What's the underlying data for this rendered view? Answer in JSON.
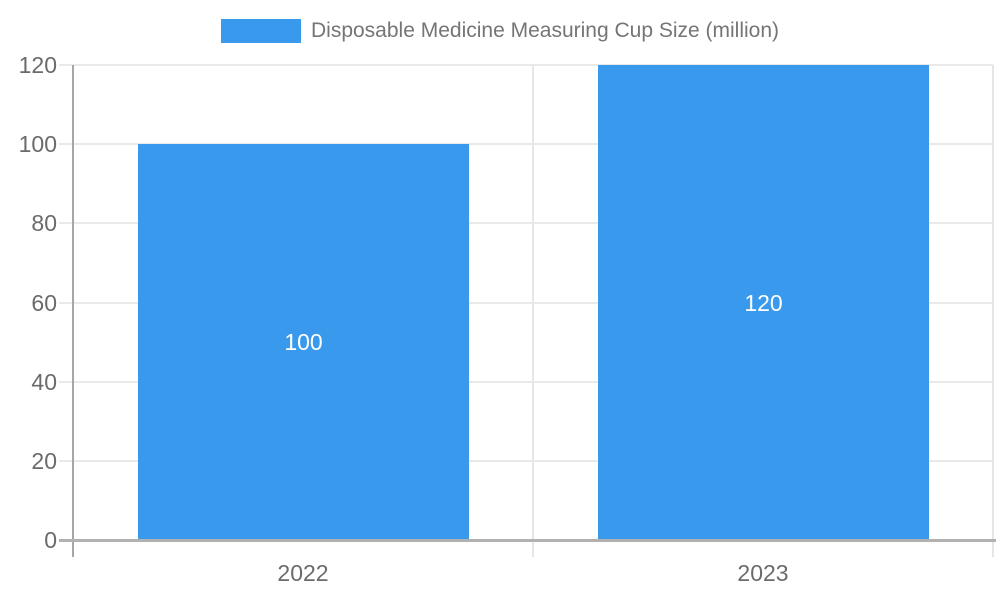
{
  "chart_data": {
    "type": "bar",
    "title": "Disposable Medicine Measuring Cup Size (million)",
    "categories": [
      "2022",
      "2023"
    ],
    "series": [
      {
        "name": "Disposable Medicine Measuring Cup Size (million)",
        "values": [
          100,
          120
        ]
      }
    ],
    "values": [
      100,
      120
    ],
    "data_labels": [
      "100",
      "120"
    ],
    "xlabel": "",
    "ylabel": "",
    "ylim": [
      0,
      120
    ],
    "yticks": [
      0,
      20,
      40,
      60,
      80,
      100,
      120
    ],
    "grid": true,
    "legend_position": "top",
    "bar_color": "#3999EC",
    "bar_label_color": "#ffffff",
    "axis_label_color": "#6b6b6b",
    "legend_text_color": "#757575"
  },
  "legend": {
    "items": [
      {
        "label": "Disposable Medicine Measuring Cup Size (million)",
        "color": "#3999EC"
      }
    ]
  }
}
